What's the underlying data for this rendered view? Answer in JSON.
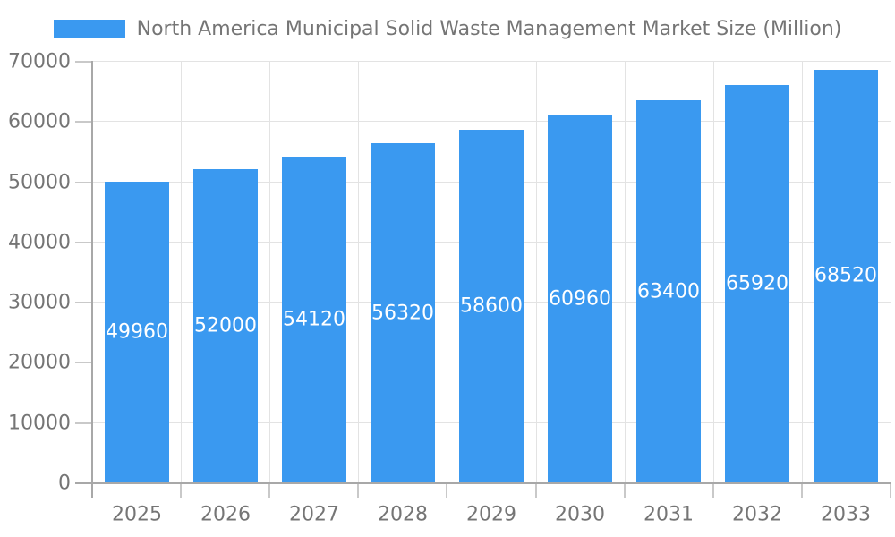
{
  "chart_data": {
    "type": "bar",
    "title": "North America Municipal Solid Waste Management Market Size (Million)",
    "categories": [
      "2025",
      "2026",
      "2027",
      "2028",
      "2029",
      "2030",
      "2031",
      "2032",
      "2033"
    ],
    "values": [
      49960,
      52000,
      54120,
      56320,
      58600,
      60960,
      63400,
      65920,
      68520
    ],
    "value_labels": [
      "49960",
      "52000",
      "54120",
      "56320",
      "58600",
      "60960",
      "63400",
      "65920",
      "68520"
    ],
    "y_ticks": [
      "0",
      "10000",
      "20000",
      "30000",
      "40000",
      "50000",
      "60000",
      "70000"
    ],
    "ylim": [
      0,
      70000
    ],
    "xlabel": "",
    "ylabel": "",
    "grid": "on",
    "legend_position": "top-center",
    "colors": {
      "bar": "#3a99f0",
      "label_text": "#757575",
      "value_text": "#ffffff",
      "axis": "#a8a8a8",
      "gridline": "#e3e3e3",
      "tick": "#c9c9c9",
      "background": "#ffffff"
    }
  }
}
